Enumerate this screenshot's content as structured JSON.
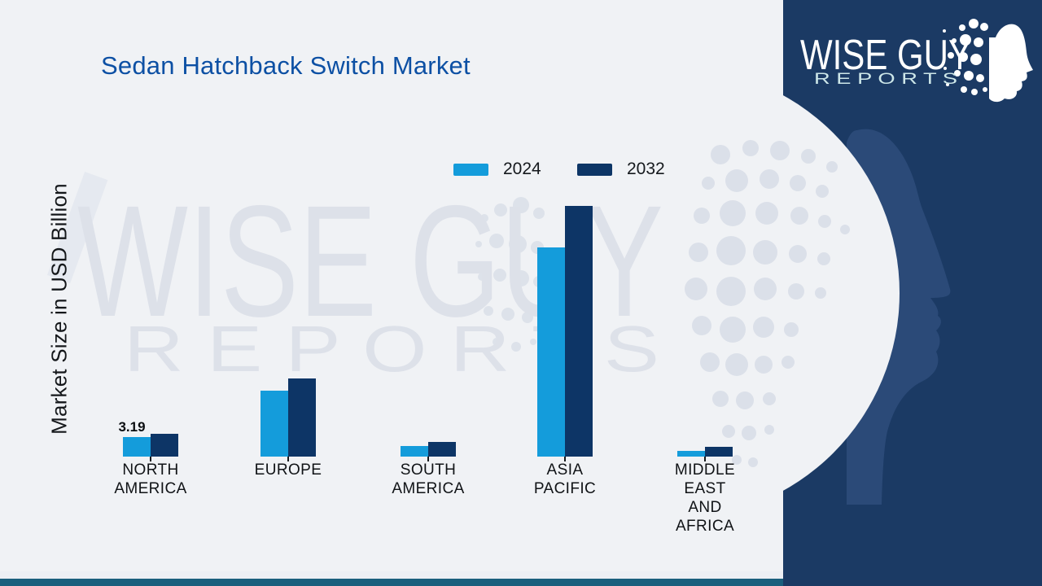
{
  "page": {
    "title": "Sedan Hatchback Switch Market",
    "background_color": "#f0f2f5"
  },
  "brand": {
    "wordmark": "WISE GUY",
    "reports_line": "R E P O R T S",
    "panel_color": "#1b3a64",
    "footer_bar_color": "#1a5f7d"
  },
  "watermark": {
    "wordmark": "WISE GUY",
    "reports_line": "R E P O R T S"
  },
  "colors": {
    "title": "#0d50a4",
    "series_2024": "#149cdb",
    "series_2032": "#0d3566"
  },
  "chart_data": {
    "type": "bar",
    "title": "Sedan Hatchback Switch Market",
    "ylabel": "Market Size in USD Billion",
    "unit": "USD Billion",
    "categories": [
      "NORTH AMERICA",
      "EUROPE",
      "SOUTH AMERICA",
      "ASIA PACIFIC",
      "MIDDLE EAST AND AFRICA"
    ],
    "series": [
      {
        "name": "2024",
        "color": "#149cdb",
        "values": [
          3.19,
          10.8,
          1.7,
          34.2,
          0.9
        ]
      },
      {
        "name": "2032",
        "color": "#0d3566",
        "values": [
          3.7,
          12.7,
          2.4,
          40.9,
          1.6
        ]
      }
    ],
    "annotations": [
      {
        "category_index": 0,
        "series_index": 0,
        "text": "3.19"
      }
    ],
    "ylim": [
      0,
      45
    ],
    "grid": false,
    "legend_position": "top-right"
  }
}
